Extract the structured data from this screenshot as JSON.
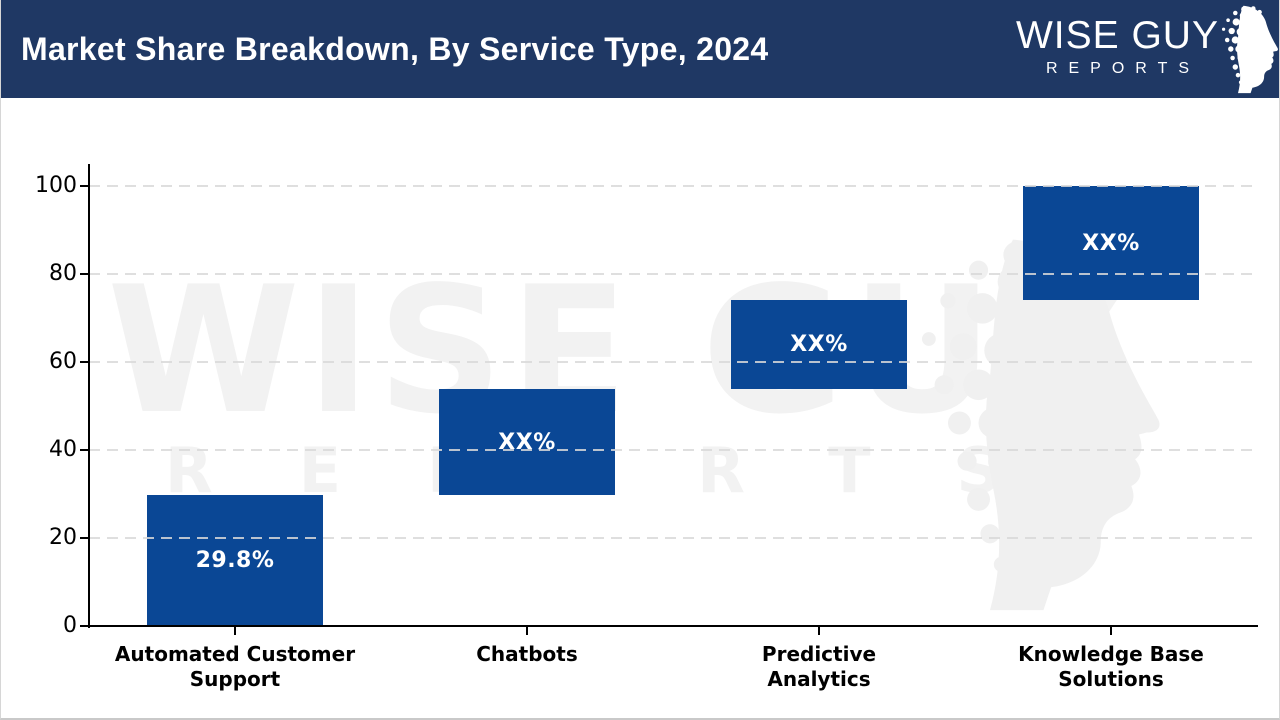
{
  "header": {
    "title": "Market Share Breakdown, By Service Type, 2024",
    "bg_color": "#1f3864",
    "logo": {
      "line1": "WISE GUY",
      "line2": "REPORTS"
    }
  },
  "watermark": {
    "line1": "WISE GUY",
    "line2": "REPORTS"
  },
  "chart_data": {
    "type": "bar",
    "subtype": "waterfall",
    "title": "Market Share Breakdown, By Service Type, 2024",
    "categories": [
      "Automated Customer Support",
      "Chatbots",
      "Predictive Analytics",
      "Knowledge Base Solutions"
    ],
    "bars": [
      {
        "category": "Automated Customer Support",
        "category_lines": [
          "Automated Customer",
          "Support"
        ],
        "start": 0,
        "end": 29.8,
        "label": "29.8%"
      },
      {
        "category": "Chatbots",
        "category_lines": [
          "Chatbots"
        ],
        "start": 29.8,
        "end": 53.8,
        "label": "XX%"
      },
      {
        "category": "Predictive Analytics",
        "category_lines": [
          "Predictive",
          "Analytics"
        ],
        "start": 53.8,
        "end": 74.0,
        "label": "XX%"
      },
      {
        "category": "Knowledge Base Solutions",
        "category_lines": [
          "Knowledge Base",
          "Solutions"
        ],
        "start": 74.0,
        "end": 100.0,
        "label": "XX%"
      }
    ],
    "yticks": [
      0,
      20,
      40,
      60,
      80,
      100
    ],
    "ylim": [
      0,
      100
    ],
    "xlabel": "",
    "ylabel": "",
    "bar_color": "#0a4795",
    "grid": "horizontal-dashed",
    "legend": "none"
  }
}
